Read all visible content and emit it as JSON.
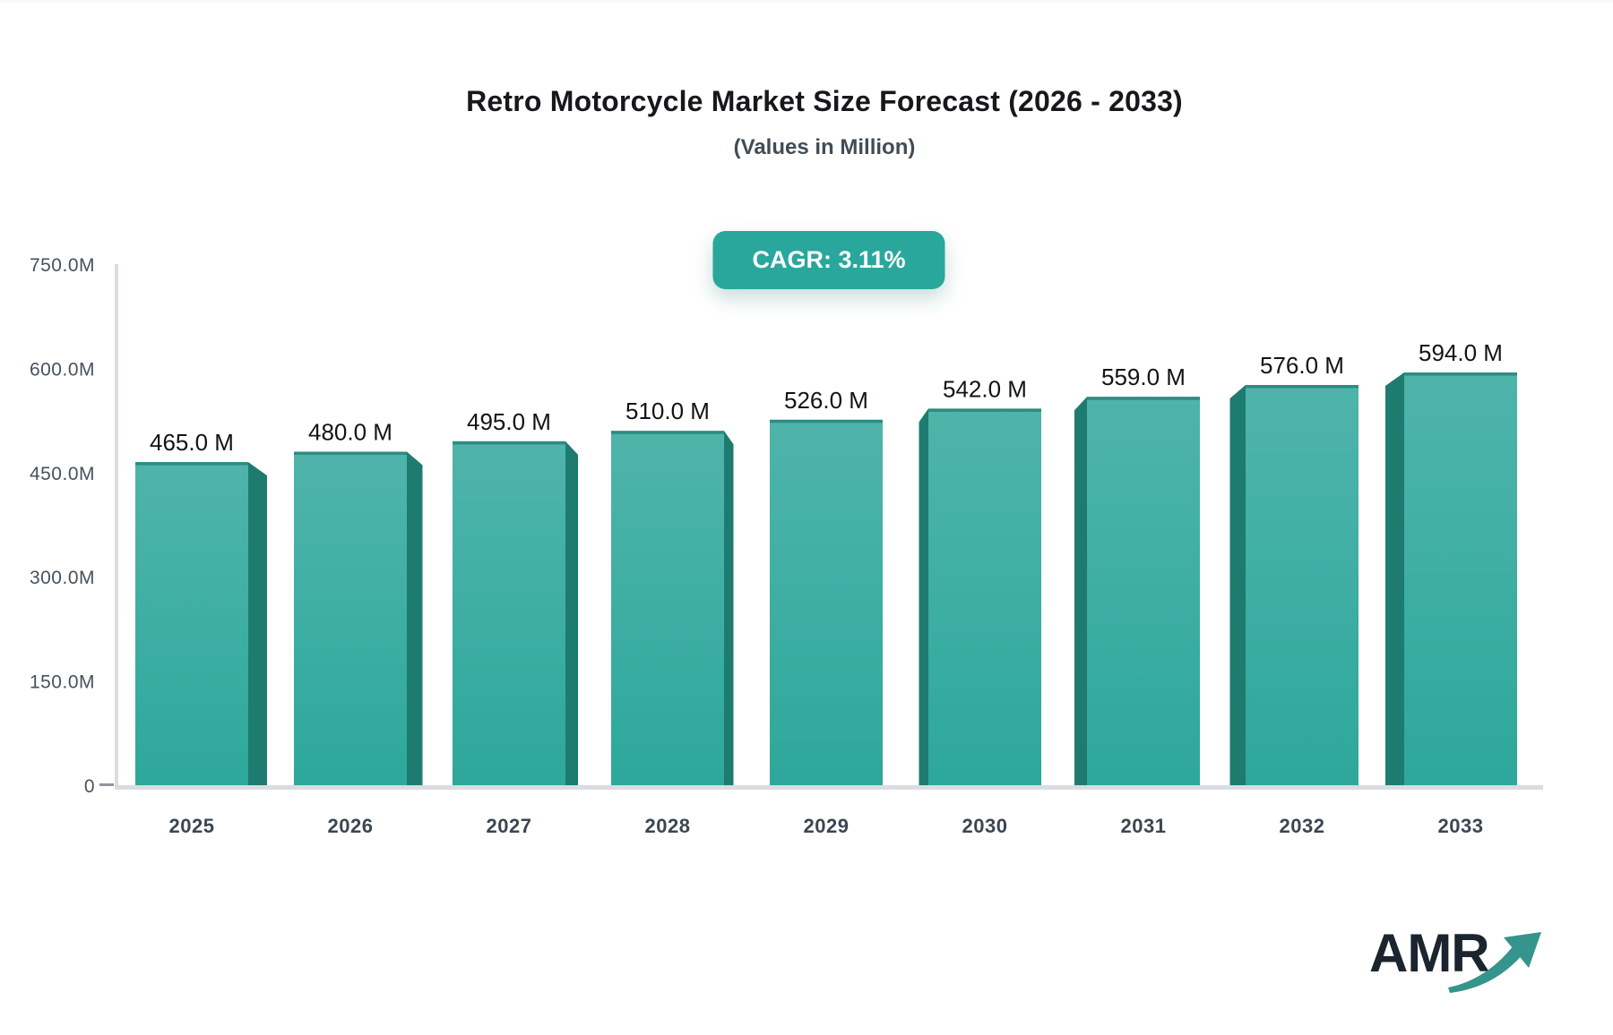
{
  "page": {
    "title": "Retro Motorcycle Market Size Forecast (2026 - 2033)",
    "subtitle": "(Values in Million)",
    "cagr_badge": "CAGR: 3.11%",
    "watermark": "AMR"
  },
  "colors": {
    "bar_gradient_top": "#4fb4ab",
    "bar_gradient_bottom": "#2da89b",
    "bar_side": "#1e7b70",
    "bar_top_cap": "#2b8d82",
    "badge_bg": "#2aa79c",
    "badge_text": "#ffffff",
    "axis_line": "#d9dce1",
    "y_tick_text": "#47525d",
    "x_tick_text": "#3b4650",
    "value_label_text": "#111416",
    "zero_tick_dash": "#8f969e",
    "logo_text": "#1b2530",
    "logo_arrow": "#35948b"
  },
  "chart_data": {
    "type": "bar",
    "title": "Retro Motorcycle Market Size Forecast (2026 - 2033)",
    "subtitle": "(Values in Million)",
    "annotation": "CAGR: 3.11%",
    "unit": "Million",
    "categories": [
      "2025",
      "2026",
      "2027",
      "2028",
      "2029",
      "2030",
      "2031",
      "2032",
      "2033"
    ],
    "values": [
      465.0,
      480.0,
      495.0,
      510.0,
      526.0,
      542.0,
      559.0,
      576.0,
      594.0
    ],
    "value_labels": [
      "465.0 M",
      "480.0 M",
      "495.0 M",
      "510.0 M",
      "526.0 M",
      "542.0 M",
      "559.0 M",
      "576.0 M",
      "594.0 M"
    ],
    "xlabel": "",
    "ylabel": "",
    "ylim": [
      0,
      750
    ],
    "y_ticks": [
      0,
      150,
      300,
      450,
      600,
      750
    ],
    "y_tick_labels": [
      "0",
      "150.0M",
      "300.0M",
      "450.0M",
      "600.0M",
      "750.0M"
    ],
    "grid": false,
    "legend": false,
    "bar_style": "3d-perspective, center bar flat, outer bars extrude toward center vanishing point"
  }
}
